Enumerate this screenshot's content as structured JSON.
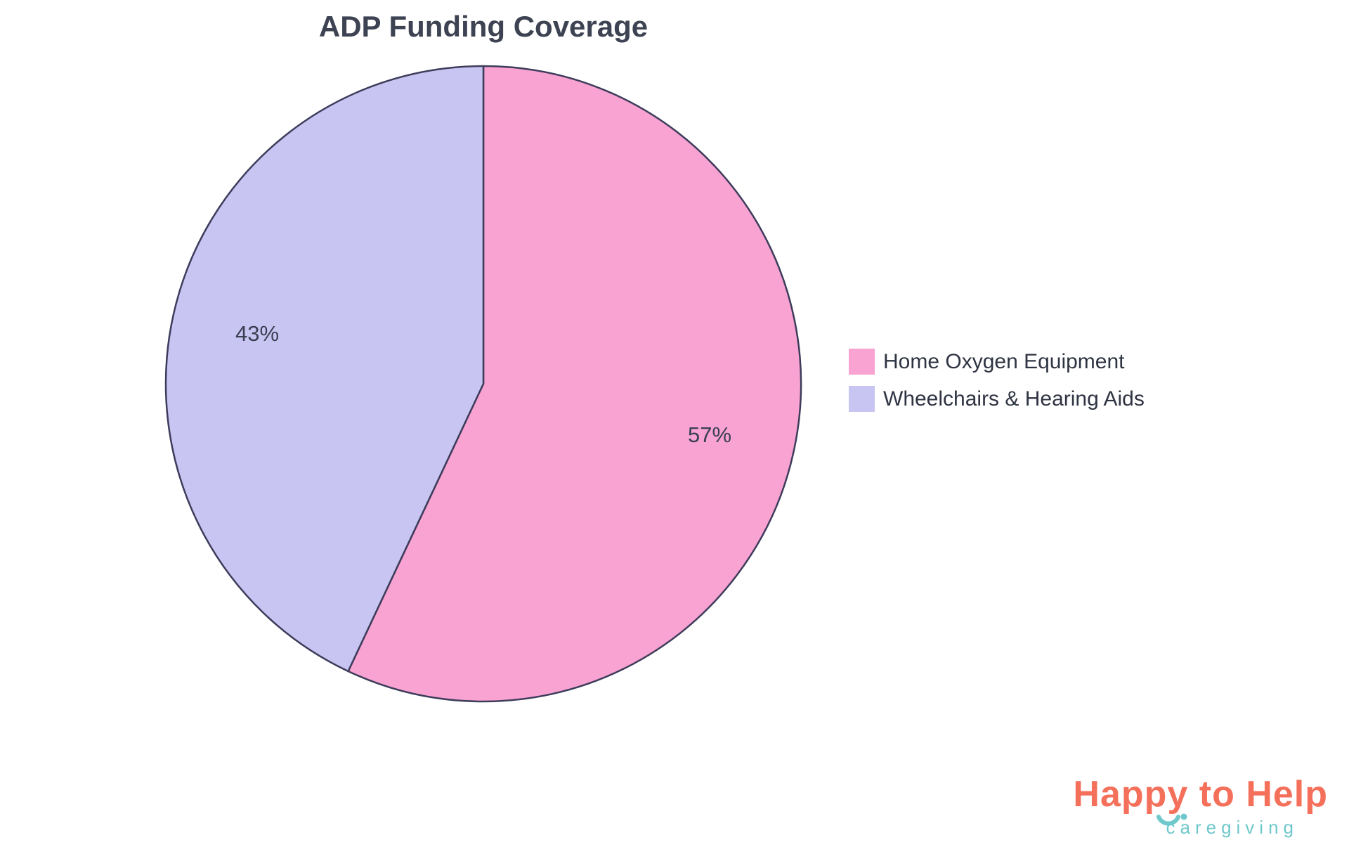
{
  "chart_data": {
    "type": "pie",
    "title": "ADP Funding Coverage",
    "slices": [
      {
        "label": "Home Oxygen Equipment",
        "value": 57,
        "pct_label": "57%",
        "color": "#F8A3D2"
      },
      {
        "label": "Wheelchairs & Hearing Aids",
        "value": 43,
        "pct_label": "43%",
        "color": "#C8C5F2"
      }
    ],
    "stroke_color": "#3E3C5B",
    "start_angle_deg": 0,
    "direction": "clockwise",
    "legend_position": "right"
  },
  "logo": {
    "title": "Happy to Help",
    "subtitle": "caregiving",
    "title_color": "#F4705B",
    "subtitle_color": "#6FC8CB"
  }
}
